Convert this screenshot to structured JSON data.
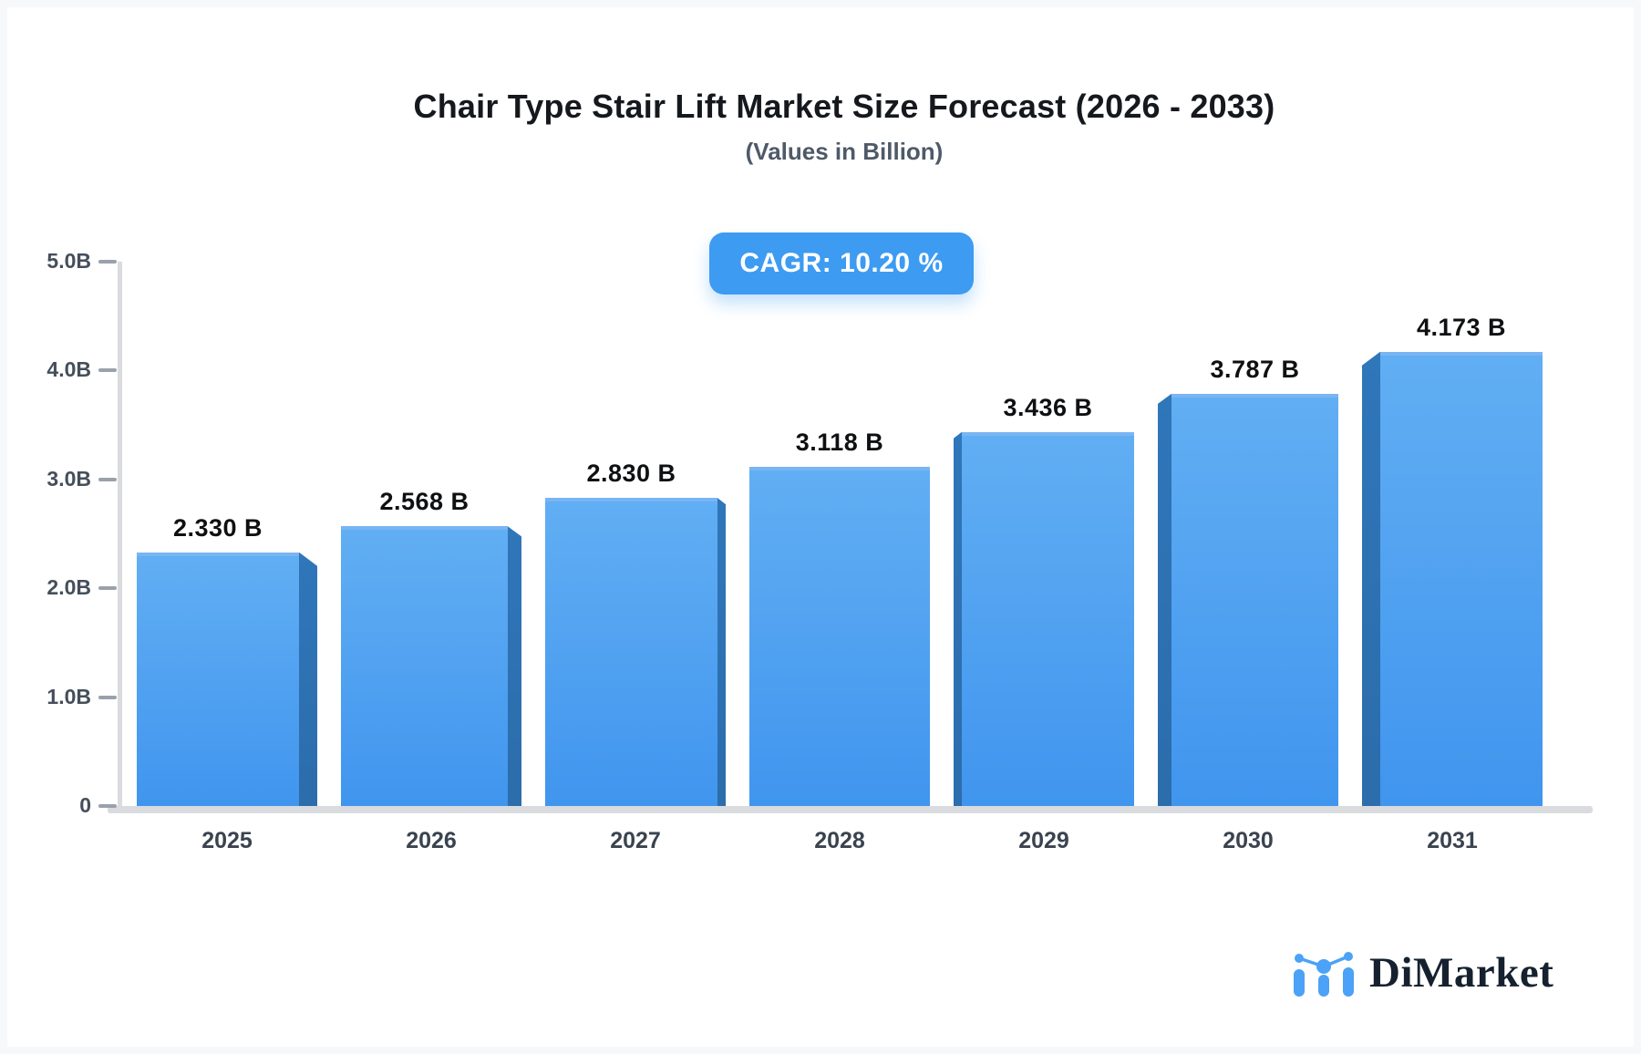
{
  "title": "Chair Type Stair Lift Market Size Forecast (2026 - 2033)",
  "subtitle": "(Values in Billion)",
  "badge": {
    "label": "CAGR: 10.20 %"
  },
  "brand": {
    "name": "DiMarket",
    "icon": "mini-bar-chart-icon",
    "accent": "#4BA2F6",
    "text_color": "#16212f"
  },
  "chart_data": {
    "type": "bar",
    "title": "Chair Type Stair Lift Market Size Forecast (2026 - 2033)",
    "subtitle": "(Values in Billion)",
    "categories": [
      "2025",
      "2026",
      "2027",
      "2028",
      "2029",
      "2030",
      "2031"
    ],
    "values": [
      2.33,
      2.568,
      2.83,
      3.118,
      3.436,
      3.787,
      4.173
    ],
    "bar_labels": [
      "2.330 B",
      "2.568 B",
      "2.830 B",
      "3.118 B",
      "3.436 B",
      "3.787 B",
      "4.173 B"
    ],
    "ylim": [
      0,
      5
    ],
    "y_ticks": [
      {
        "label": "5.0B",
        "value": 5
      },
      {
        "label": "4.0B",
        "value": 4
      },
      {
        "label": "3.0B",
        "value": 3
      },
      {
        "label": "2.0B",
        "value": 2
      },
      {
        "label": "1.0B",
        "value": 1
      },
      {
        "label": "0",
        "value": 0
      }
    ],
    "grid": false,
    "legend": false,
    "style_3d": true,
    "colors": {
      "bar_top": "#61aef3",
      "bar_bottom": "#4095ee",
      "bar_side": "#2e74b6",
      "axis": "#d9dbde",
      "badge": "#3d9bf2"
    }
  }
}
